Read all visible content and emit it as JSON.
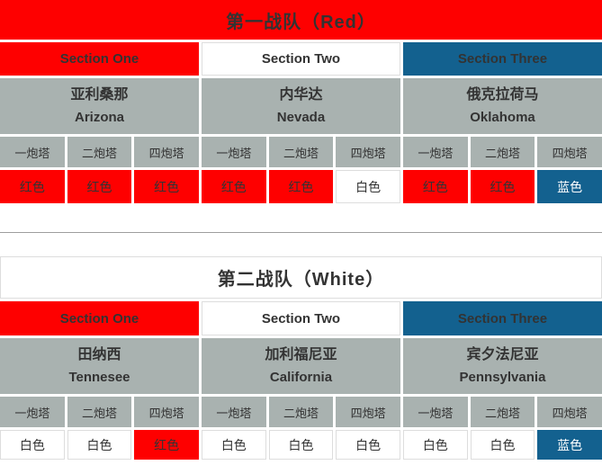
{
  "colors": {
    "red": "#fe0000",
    "white": "#ffffff",
    "blue": "#13618f",
    "gray": "#a9b2b0",
    "dark": "#333333",
    "light": "#ffffff",
    "cell_border": "#dddddd",
    "divider": "#9e9e9e"
  },
  "tower_header_style": {
    "bg": "gray",
    "fg": "dark"
  },
  "tables": [
    {
      "title": {
        "label": "第一战队（Red）",
        "bg": "red",
        "fg": "dark"
      },
      "sections": [
        {
          "header": {
            "label": "Section One",
            "bg": "red",
            "fg": "dark"
          },
          "state": {
            "cn": "亚利桑那",
            "en": "Arizona",
            "bg": "gray",
            "fg": "dark"
          },
          "towers": [
            "一炮塔",
            "二炮塔",
            "四炮塔"
          ],
          "values": [
            {
              "label": "红色",
              "bg": "red",
              "fg": "dark"
            },
            {
              "label": "红色",
              "bg": "red",
              "fg": "dark"
            },
            {
              "label": "红色",
              "bg": "red",
              "fg": "dark"
            }
          ]
        },
        {
          "header": {
            "label": "Section Two",
            "bg": "white",
            "fg": "dark"
          },
          "state": {
            "cn": "内华达",
            "en": "Nevada",
            "bg": "gray",
            "fg": "dark"
          },
          "towers": [
            "一炮塔",
            "二炮塔",
            "四炮塔"
          ],
          "values": [
            {
              "label": "红色",
              "bg": "red",
              "fg": "dark"
            },
            {
              "label": "红色",
              "bg": "red",
              "fg": "dark"
            },
            {
              "label": "白色",
              "bg": "white",
              "fg": "dark"
            }
          ]
        },
        {
          "header": {
            "label": "Section Three",
            "bg": "blue",
            "fg": "dark"
          },
          "state": {
            "cn": "俄克拉荷马",
            "en": "Oklahoma",
            "bg": "gray",
            "fg": "dark"
          },
          "towers": [
            "一炮塔",
            "二炮塔",
            "四炮塔"
          ],
          "values": [
            {
              "label": "红色",
              "bg": "red",
              "fg": "dark"
            },
            {
              "label": "红色",
              "bg": "red",
              "fg": "dark"
            },
            {
              "label": "蓝色",
              "bg": "blue",
              "fg": "light"
            }
          ]
        }
      ]
    },
    {
      "title": {
        "label": "第二战队（White）",
        "bg": "white",
        "fg": "dark"
      },
      "sections": [
        {
          "header": {
            "label": "Section One",
            "bg": "red",
            "fg": "dark"
          },
          "state": {
            "cn": "田纳西",
            "en": "Tennesee",
            "bg": "gray",
            "fg": "dark"
          },
          "towers": [
            "一炮塔",
            "二炮塔",
            "四炮塔"
          ],
          "values": [
            {
              "label": "白色",
              "bg": "white",
              "fg": "dark"
            },
            {
              "label": "白色",
              "bg": "white",
              "fg": "dark"
            },
            {
              "label": "红色",
              "bg": "red",
              "fg": "dark"
            }
          ]
        },
        {
          "header": {
            "label": "Section Two",
            "bg": "white",
            "fg": "dark"
          },
          "state": {
            "cn": "加利福尼亚",
            "en": "California",
            "bg": "gray",
            "fg": "dark"
          },
          "towers": [
            "一炮塔",
            "二炮塔",
            "四炮塔"
          ],
          "values": [
            {
              "label": "白色",
              "bg": "white",
              "fg": "dark"
            },
            {
              "label": "白色",
              "bg": "white",
              "fg": "dark"
            },
            {
              "label": "白色",
              "bg": "white",
              "fg": "dark"
            }
          ]
        },
        {
          "header": {
            "label": "Section Three",
            "bg": "blue",
            "fg": "dark"
          },
          "state": {
            "cn": "宾夕法尼亚",
            "en": "Pennsylvania",
            "bg": "gray",
            "fg": "dark"
          },
          "towers": [
            "一炮塔",
            "二炮塔",
            "四炮塔"
          ],
          "values": [
            {
              "label": "白色",
              "bg": "white",
              "fg": "dark"
            },
            {
              "label": "白色",
              "bg": "white",
              "fg": "dark"
            },
            {
              "label": "蓝色",
              "bg": "blue",
              "fg": "light"
            }
          ]
        }
      ]
    }
  ]
}
